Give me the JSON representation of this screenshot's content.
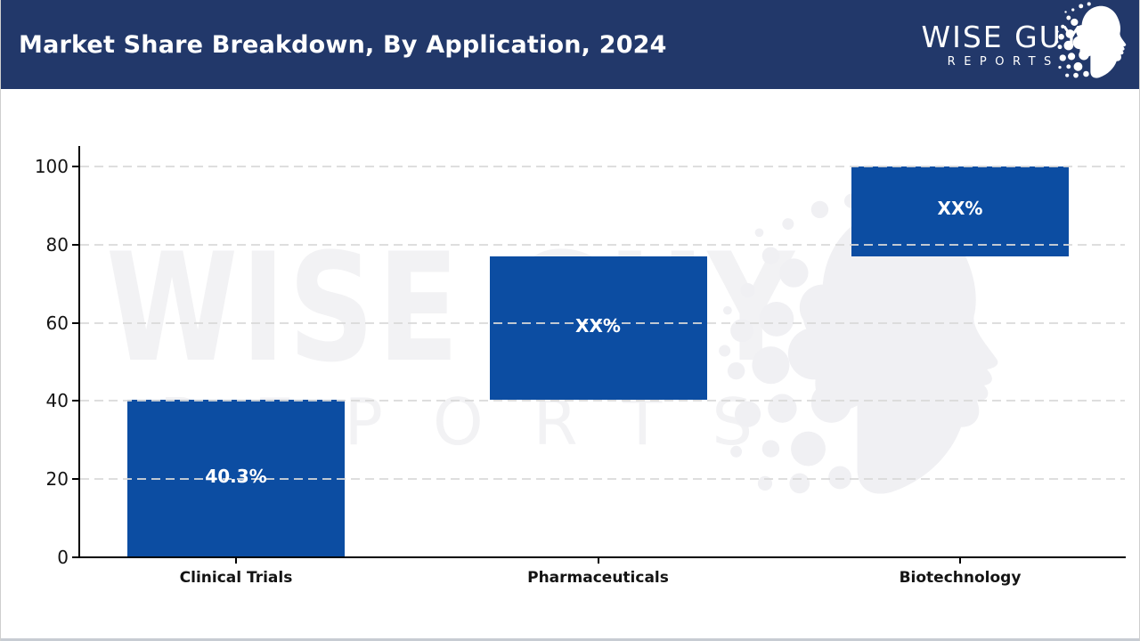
{
  "header": {
    "title": "Market Share Breakdown, By Application, 2024",
    "logo": {
      "name": "WISE GUY",
      "sub": "REPORTS"
    }
  },
  "watermark": {
    "line1": "WISE GUY",
    "line2": "REPORTS"
  },
  "chart_data": {
    "type": "bar",
    "subtype": "waterfall-stacked-breakdown",
    "title": "Market Share Breakdown, By Application, 2024",
    "categories": [
      "Clinical Trials",
      "Pharmaceuticals",
      "Biotechnology"
    ],
    "segments": [
      {
        "category": "Clinical Trials",
        "start": 0,
        "end": 40.3,
        "label": "40.3%"
      },
      {
        "category": "Pharmaceuticals",
        "start": 40.3,
        "end": 77,
        "label": "XX%"
      },
      {
        "category": "Biotechnology",
        "start": 77,
        "end": 100,
        "label": "XX%"
      }
    ],
    "ylim": [
      0,
      100
    ],
    "yticks": [
      0,
      20,
      40,
      60,
      80,
      100
    ],
    "xlabel": "",
    "ylabel": "",
    "grid": "horizontal-dashed",
    "legend": "none",
    "bar_color": "#0c4da2",
    "bar_label_color": "#ffffff"
  },
  "colors": {
    "header_bg": "#22386a",
    "bar": "#0c4da2",
    "gridline": "#d9d9d9",
    "axis": "#000000",
    "tick_text": "#141414",
    "watermark": "#f2f2f4"
  }
}
